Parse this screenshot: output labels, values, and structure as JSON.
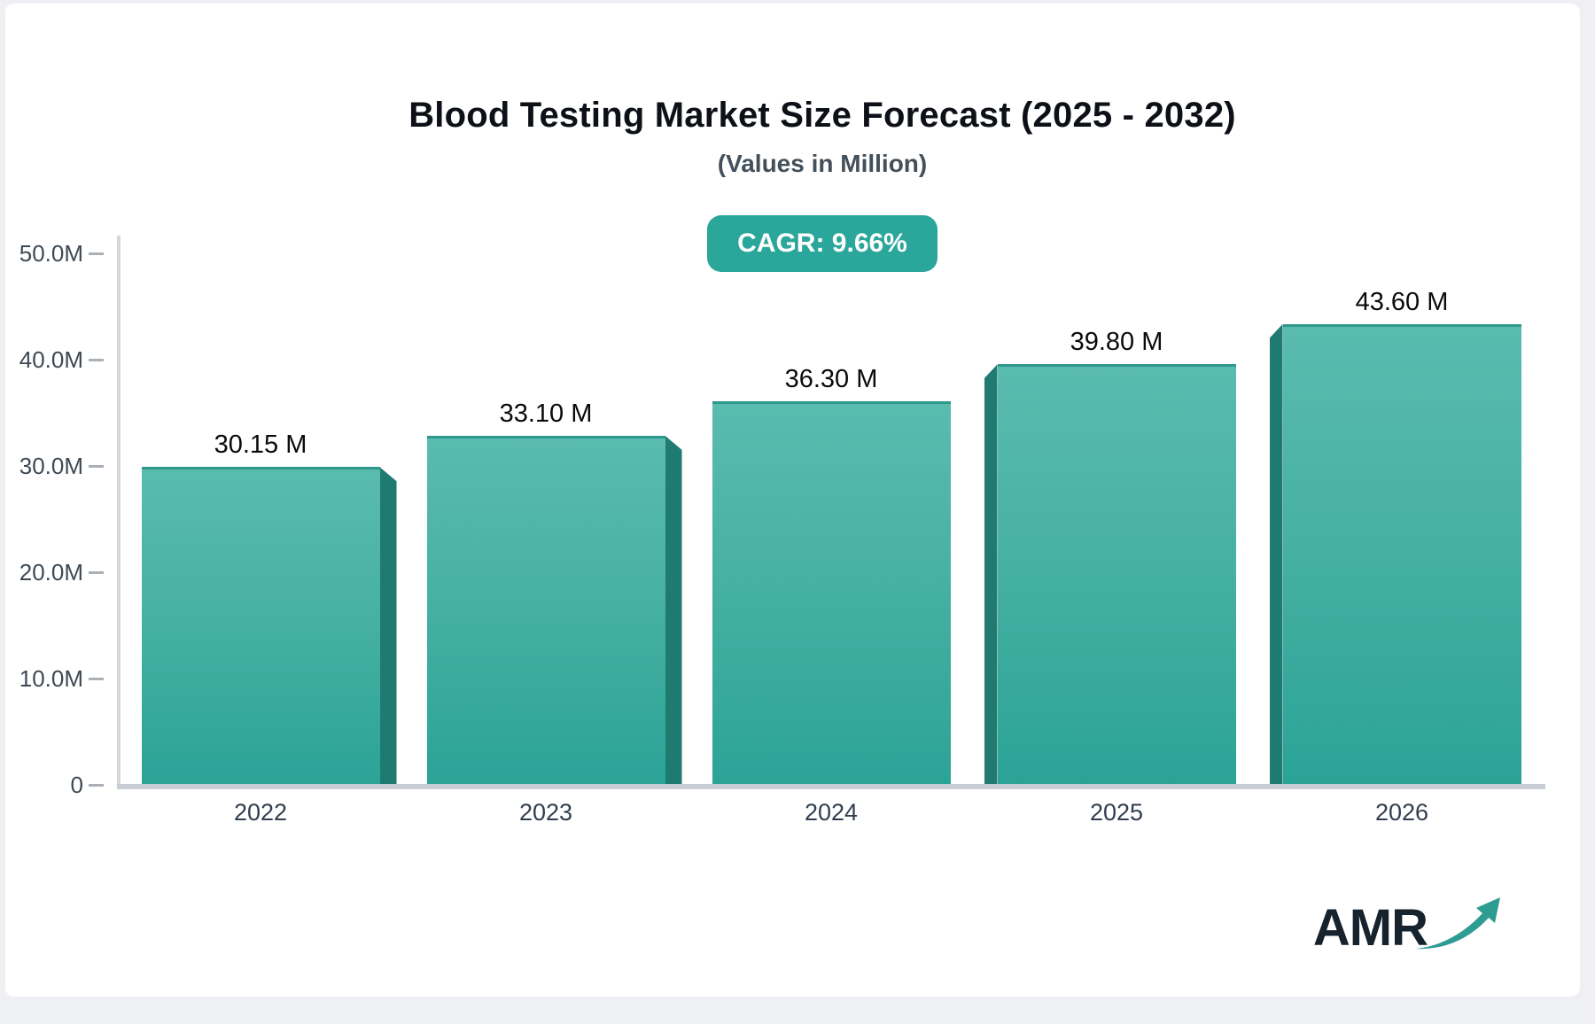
{
  "header": {
    "title": "Blood Testing Market Size Forecast (2025 - 2032)",
    "subtitle": "(Values in Million)",
    "badge": "CAGR: 9.66%"
  },
  "chart_data": {
    "type": "bar",
    "title": "Blood Testing Market Size Forecast (2025 - 2032)",
    "subtitle": "(Values in Million)",
    "annotation": "CAGR: 9.66%",
    "unit": "Million",
    "categories": [
      "2022",
      "2023",
      "2024",
      "2025",
      "2026"
    ],
    "values": [
      30.15,
      33.1,
      36.3,
      39.8,
      43.6
    ],
    "value_labels": [
      "30.15 M",
      "33.10 M",
      "36.30 M",
      "39.80 M",
      "43.60 M"
    ],
    "ylim": [
      0,
      50
    ],
    "y_ticks": [
      {
        "label": "0",
        "value": 0
      },
      {
        "label": "10.0M",
        "value": 10
      },
      {
        "label": "20.0M",
        "value": 20
      },
      {
        "label": "30.0M",
        "value": 30
      },
      {
        "label": "40.0M",
        "value": 40
      },
      {
        "label": "50.0M",
        "value": 50
      }
    ],
    "grid": false,
    "legend": false,
    "bevels": [
      "right",
      "right",
      "none",
      "left",
      "left"
    ]
  },
  "colors": {
    "accent": "#2aa79a",
    "bar_top": "#5abbaf",
    "bar_bottom": "#2aa396",
    "bar_side": "#1f7b71",
    "axis_line": "#c9ced5",
    "title_text": "#0d1117",
    "logo_text": "#16222c",
    "logo_arrow": "#2d9c92"
  },
  "logo": {
    "text": "AMR"
  }
}
